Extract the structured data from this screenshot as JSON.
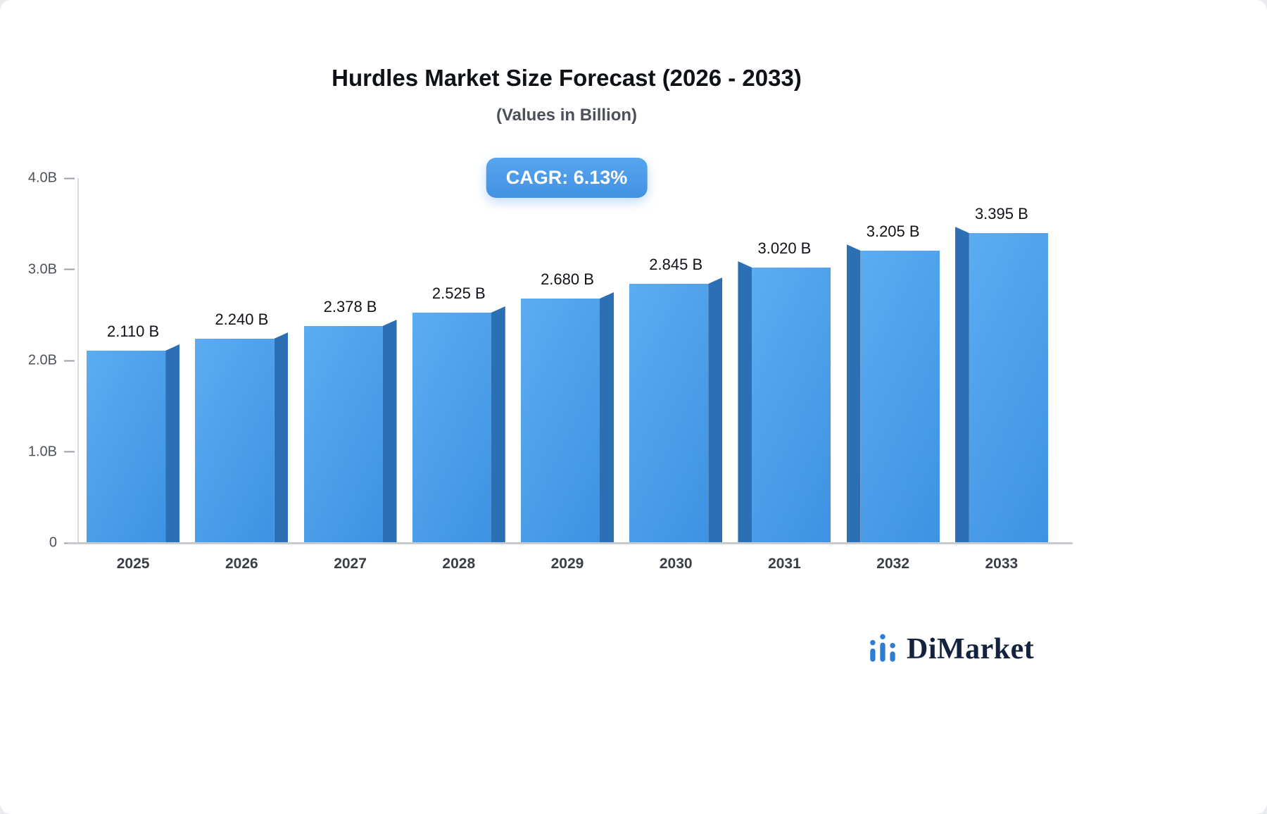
{
  "header": {
    "title": "Hurdles Market Size Forecast (2026 - 2033)",
    "subtitle": "(Values in Billion)",
    "cagr_label": "CAGR: 6.13%"
  },
  "chart_data": {
    "type": "bar",
    "title": "Hurdles Market Size Forecast (2026 - 2033)",
    "subtitle": "(Values in Billion)",
    "categories": [
      "2025",
      "2026",
      "2027",
      "2028",
      "2029",
      "2030",
      "2031",
      "2032",
      "2033"
    ],
    "values": [
      2.11,
      2.24,
      2.378,
      2.525,
      2.68,
      2.845,
      3.02,
      3.205,
      3.395
    ],
    "value_labels": [
      "2.110 B",
      "2.240 B",
      "2.378 B",
      "2.525 B",
      "2.680 B",
      "2.845 B",
      "3.020 B",
      "3.205 B",
      "3.395 B"
    ],
    "cagr": "CAGR: 6.13%",
    "xlabel": "",
    "ylabel": "",
    "ylim": [
      0,
      4.0
    ],
    "yticks": [
      0,
      1.0,
      2.0,
      3.0,
      4.0
    ],
    "ytick_labels": [
      "0",
      "1.0B",
      "2.0B",
      "3.0B",
      "4.0B"
    ],
    "grid": false,
    "legend": false,
    "colors": {
      "bar_front_light": "#5cacf1",
      "bar_front_dark": "#3e92e2",
      "bar_side": "#2b6fb5",
      "accent": "#4d9bea",
      "axis_line": "#c7cacf"
    }
  },
  "branding": {
    "logo_text": "DiMarket",
    "logo_icon": "bar-chart-icon",
    "logo_color": "#2d7dd2"
  }
}
